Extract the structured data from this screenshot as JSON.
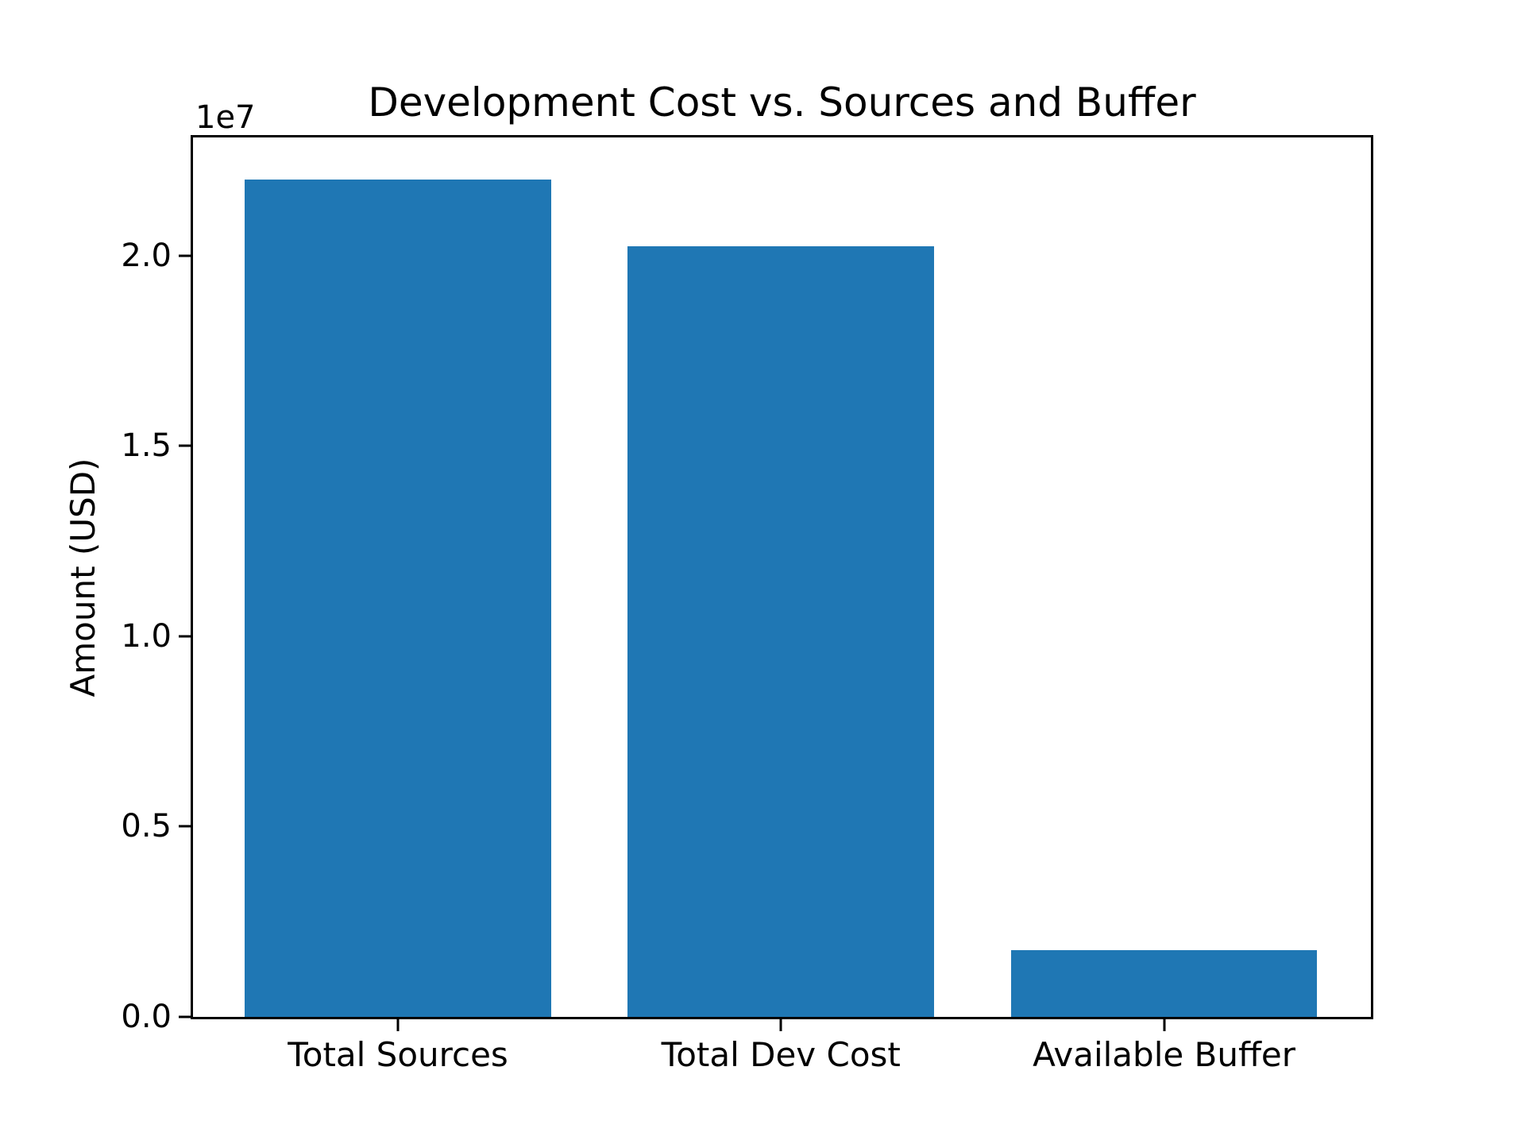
{
  "chart_data": {
    "type": "bar",
    "title": "Development Cost vs. Sources and Buffer",
    "xlabel": "",
    "ylabel": "Amount (USD)",
    "y_offset_label": "1e7",
    "categories": [
      "Total Sources",
      "Total Dev Cost",
      "Available Buffer"
    ],
    "values": [
      22000000,
      20250000,
      1750000
    ],
    "ylim": [
      0,
      23100000
    ],
    "xlim": [
      -0.535,
      2.54
    ],
    "yticks": [
      0,
      5000000,
      10000000,
      15000000,
      20000000
    ],
    "ytick_labels": [
      "0.0",
      "0.5",
      "1.0",
      "1.5",
      "2.0"
    ],
    "bar_width_fraction": 0.8,
    "bar_color": "#1f77b4",
    "background_color": "#ffffff",
    "text_color": "#000000",
    "grid": false,
    "legend": null
  }
}
